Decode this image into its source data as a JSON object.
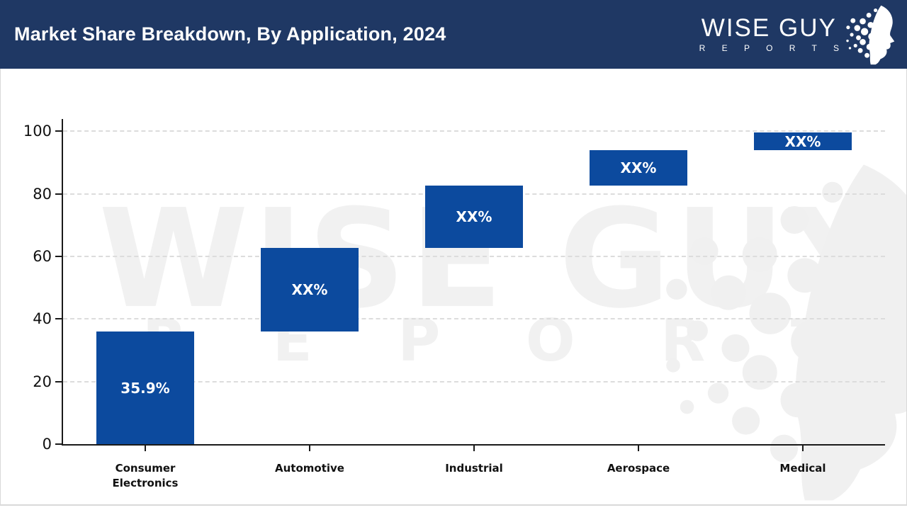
{
  "header": {
    "title": "Market Share Breakdown, By Application, 2024",
    "bg_color": "#1f3864",
    "logo": {
      "name": "WISE GUY",
      "sub": "R E P O R T S"
    }
  },
  "watermark": {
    "line1": "WISE GUY",
    "line2": "R E P O R T S"
  },
  "chart_data": {
    "type": "bar",
    "variant": "waterfall",
    "title": "Market Share Breakdown, By Application, 2024",
    "categories": [
      "Consumer Electronics",
      "Automotive",
      "Industrial",
      "Aerospace",
      "Medical"
    ],
    "bars": [
      {
        "category": "Consumer Electronics",
        "label_lines": [
          "Consumer",
          "Electronics"
        ],
        "start": 0,
        "end": 35.9,
        "value_label": "35.9%"
      },
      {
        "category": "Automotive",
        "label_lines": [
          "Automotive"
        ],
        "start": 35.9,
        "end": 62.6,
        "value_label": "XX%"
      },
      {
        "category": "Industrial",
        "label_lines": [
          "Industrial"
        ],
        "start": 62.6,
        "end": 82.7,
        "value_label": "XX%"
      },
      {
        "category": "Aerospace",
        "label_lines": [
          "Aerospace"
        ],
        "start": 82.7,
        "end": 93.9,
        "value_label": "XX%"
      },
      {
        "category": "Medical",
        "label_lines": [
          "Medical"
        ],
        "start": 93.9,
        "end": 99.5,
        "value_label": "XX%"
      }
    ],
    "bar_color": "#0c4a9e",
    "value_label_color": "#ffffff",
    "yticks": [
      0,
      20,
      40,
      60,
      80,
      100
    ],
    "ylim": [
      0,
      103
    ],
    "grid": "horizontal-dashed",
    "gridline_color": "#dcdcdc",
    "axis_color": "#1a1a1a",
    "legend": "none",
    "xlabel": "",
    "ylabel": ""
  }
}
